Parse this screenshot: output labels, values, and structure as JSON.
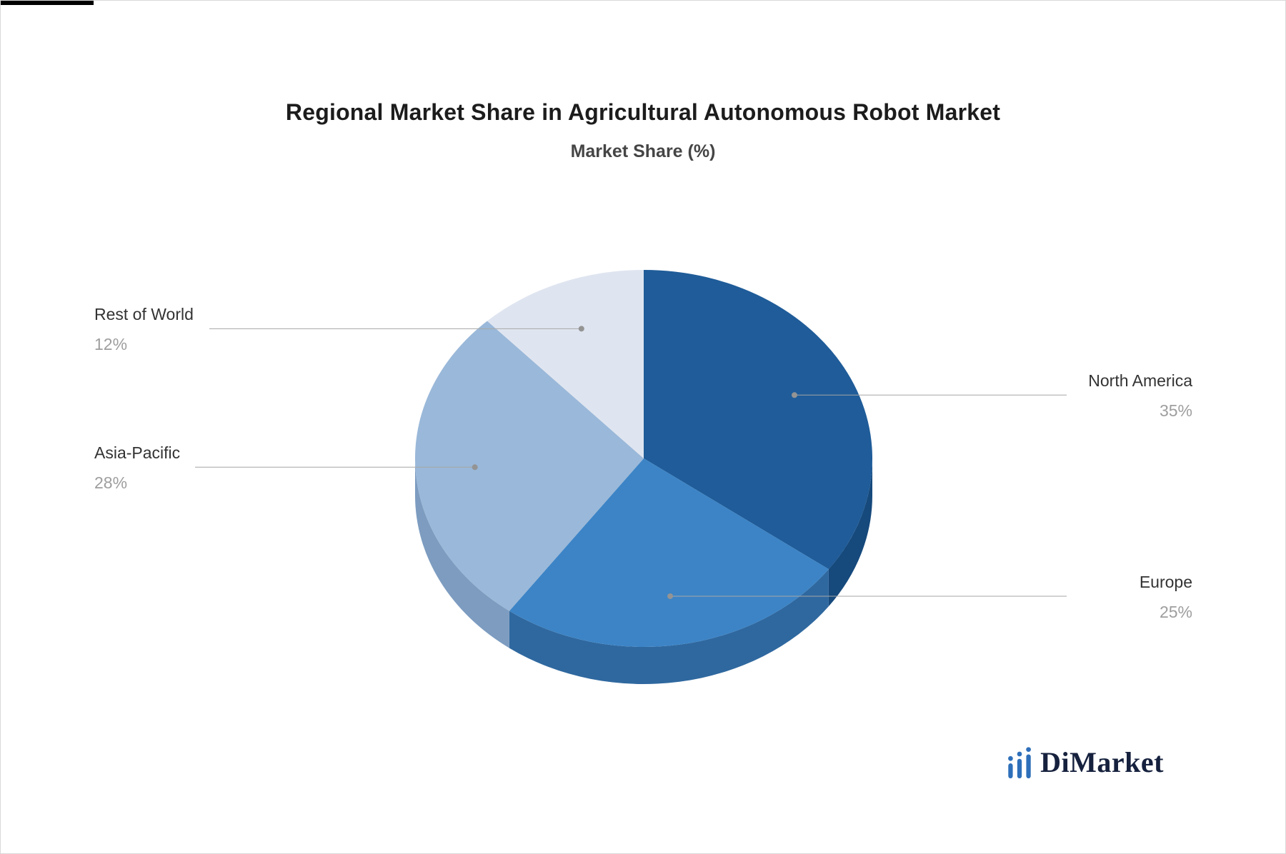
{
  "chart_data": {
    "type": "pie",
    "title": "Regional Market Share in Agricultural Autonomous Robot Market",
    "subtitle": "Market Share (%)",
    "unit": "%",
    "start_angle": "top",
    "direction": "clockwise",
    "legend_position": "none",
    "style_3d": true,
    "slices": [
      {
        "label": "North America",
        "value": 35,
        "display_value": "35%",
        "color": "#1f5c99",
        "side_color": "#16497c"
      },
      {
        "label": "Europe",
        "value": 25,
        "display_value": "25%",
        "color": "#3c84c6",
        "side_color": "#2f689f"
      },
      {
        "label": "Asia-Pacific",
        "value": 28,
        "display_value": "28%",
        "color": "#9ab8d9",
        "side_color": "#7d9cc0"
      },
      {
        "label": "Rest of World",
        "value": 12,
        "display_value": "12%",
        "color": "#dfe5f0",
        "side_color": "#c4cfe0"
      }
    ],
    "label_style": {
      "name_color": "#333333",
      "value_color": "#9e9e9e",
      "line_color": "#a6a6a6",
      "dot_color": "#949494"
    }
  },
  "branding": {
    "name": "DiMarket",
    "icon": "bar-chart-logo-icon",
    "text_color": "#16213e",
    "icon_color": "#2e6fba"
  }
}
